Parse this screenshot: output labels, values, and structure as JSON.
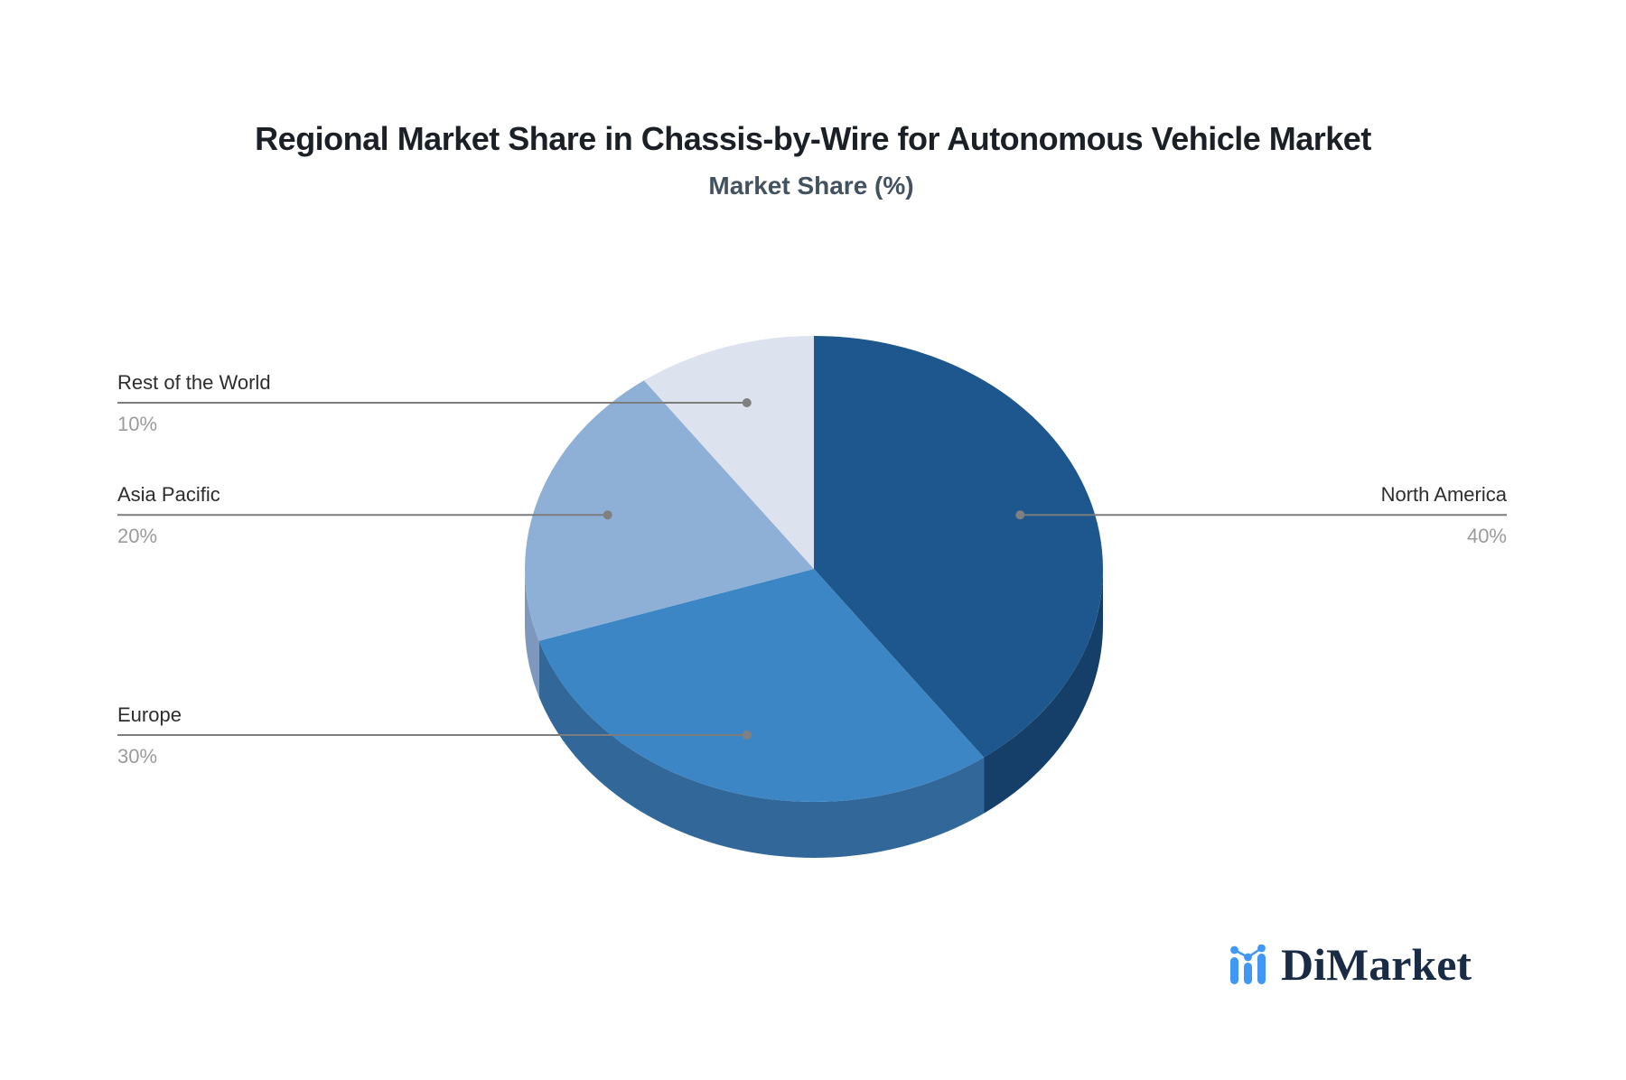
{
  "header": {
    "title": "Regional Market Share in Chassis-by-Wire for Autonomous Vehicle Market",
    "subtitle": "Market Share (%)"
  },
  "chart_data": {
    "type": "pie",
    "style": "3d",
    "title": "Regional Market Share in Chassis-by-Wire for Autonomous Vehicle Market",
    "subtitle": "Market Share (%)",
    "start_angle_deg": 0,
    "clockwise": true,
    "legend_position": "callout-labels",
    "callout_line_color": "#7d7d7d",
    "callout_dot_color": "#808080",
    "label_color": "#2d2d2d",
    "value_color": "#9b9b9b",
    "segments": [
      {
        "label": "North America",
        "value": 40,
        "display": "40%",
        "color": "#1d578d",
        "side_color": "#153f68"
      },
      {
        "label": "Europe",
        "value": 30,
        "display": "30%",
        "color": "#3c86c6",
        "side_color": "#326899"
      },
      {
        "label": "Asia Pacific",
        "value": 20,
        "display": "20%",
        "color": "#8fb0d6",
        "side_color": "#7d98bc"
      },
      {
        "label": "Rest of the World",
        "value": 10,
        "display": "10%",
        "color": "#dde3ee",
        "side_color": "#c2cbda"
      }
    ]
  },
  "branding": {
    "logo_text": "DiMarket",
    "logo_icon": "bar-line-chart-icon",
    "logo_accent_color": "#4098f4",
    "logo_text_color": "#1a2b45"
  }
}
